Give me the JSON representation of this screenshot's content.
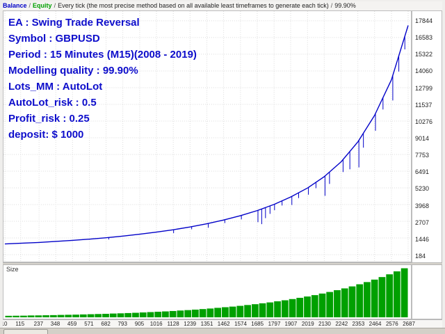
{
  "legend": {
    "balance_label": "Balance",
    "equity_label": "Equity",
    "separator": "/",
    "method_text": "Every tick (the most precise method based on all available least timeframes to generate each tick)",
    "quality": "99.90%"
  },
  "size_panel": {
    "label": "Size"
  },
  "chart_data": {
    "type": "line",
    "title": "",
    "xlabel": "",
    "ylabel": "",
    "grid": true,
    "xlim": [
      10,
      2687
    ],
    "ylim": [
      184,
      17844
    ],
    "x_ticks": [
      10,
      115,
      237,
      348,
      459,
      571,
      682,
      793,
      905,
      1016,
      1128,
      1239,
      1351,
      1462,
      1574,
      1685,
      1797,
      1907,
      2019,
      2130,
      2242,
      2353,
      2464,
      2576,
      2687
    ],
    "y_ticks": [
      17844,
      16583,
      15322,
      14060,
      12799,
      11537,
      10276,
      9014,
      7753,
      6491,
      5230,
      3968,
      2707,
      1446,
      184
    ],
    "colors": {
      "line": "#0000C8",
      "histogram": "#00A000",
      "grid": "#DBDBDB",
      "annotation": "#0D0DCB",
      "equity_legend": "#00A000"
    },
    "series": [
      {
        "name": "Balance",
        "x": [
          10,
          115,
          237,
          348,
          459,
          571,
          682,
          793,
          905,
          1016,
          1128,
          1239,
          1351,
          1462,
          1574,
          1685,
          1797,
          1907,
          2019,
          2130,
          2242,
          2353,
          2464,
          2576,
          2687
        ],
        "y": [
          1000,
          1050,
          1110,
          1185,
          1265,
          1360,
          1465,
          1590,
          1730,
          1890,
          2070,
          2280,
          2520,
          2800,
          3130,
          3520,
          3980,
          4540,
          5220,
          6080,
          7200,
          8700,
          10700,
          13400,
          17500
        ]
      }
    ],
    "drawdown_spikes": [
      [
        700,
        150
      ],
      [
        1130,
        260
      ],
      [
        1250,
        200
      ],
      [
        1360,
        320
      ],
      [
        1470,
        250
      ],
      [
        1580,
        300
      ],
      [
        1690,
        900
      ],
      [
        1715,
        1150
      ],
      [
        1740,
        800
      ],
      [
        1770,
        600
      ],
      [
        1800,
        450
      ],
      [
        1850,
        350
      ],
      [
        1915,
        650
      ],
      [
        1960,
        400
      ],
      [
        2025,
        550
      ],
      [
        2075,
        450
      ],
      [
        2135,
        1500
      ],
      [
        2165,
        900
      ],
      [
        2255,
        950
      ],
      [
        2300,
        1350
      ],
      [
        2360,
        2050
      ],
      [
        2390,
        1100
      ],
      [
        2470,
        1300
      ],
      [
        2520,
        900
      ],
      [
        2585,
        1900
      ],
      [
        2625,
        1200
      ],
      [
        2665,
        1000
      ]
    ],
    "annotations": [
      "EA : Swing Trade Reversal",
      "Symbol : GBPUSD",
      "Period : 15 Minutes (M15)(2008 - 2019)",
      "Modelling quality : 99.90%",
      "Lots_MM : AutoLot",
      "AutoLot_risk : 0.5",
      "Profit_risk : 0.25",
      "deposit: $ 1000"
    ],
    "size_histogram": {
      "name": "Size",
      "values": [
        0.03,
        0.032,
        0.034,
        0.037,
        0.039,
        0.042,
        0.045,
        0.048,
        0.051,
        0.054,
        0.058,
        0.062,
        0.066,
        0.071,
        0.076,
        0.081,
        0.086,
        0.092,
        0.099,
        0.105,
        0.112,
        0.12,
        0.128,
        0.137,
        0.146,
        0.156,
        0.167,
        0.178,
        0.191,
        0.204,
        0.217,
        0.232,
        0.248,
        0.265,
        0.283,
        0.302,
        0.323,
        0.345,
        0.369,
        0.394,
        0.421,
        0.449,
        0.48,
        0.513,
        0.548,
        0.585,
        0.625,
        0.668,
        0.713,
        0.762,
        0.814,
        0.87,
        0.929,
        0.992
      ]
    }
  }
}
